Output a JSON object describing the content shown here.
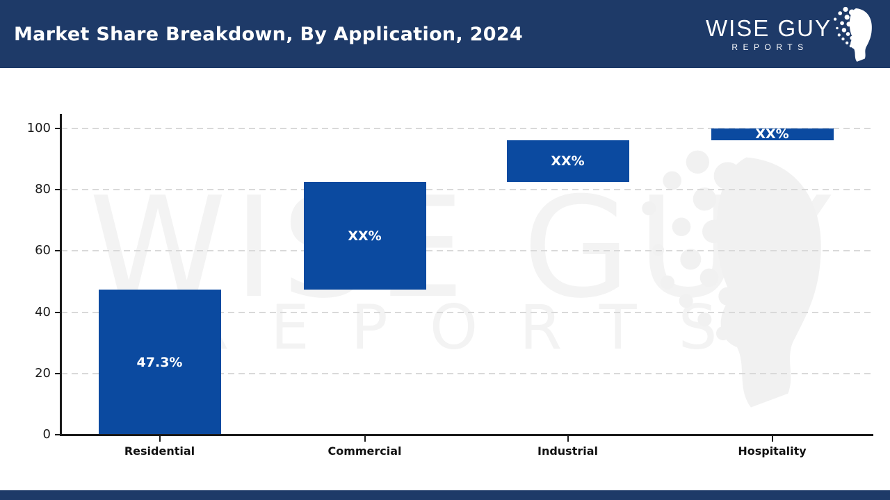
{
  "header": {
    "title": "Market Share Breakdown, By Application, 2024",
    "logo": {
      "line1": "WISE GUY",
      "line2": "REPORTS"
    }
  },
  "watermark": {
    "line1": "WISE GUY",
    "line2": "REPORTS"
  },
  "chart_data": {
    "type": "bar",
    "variant": "waterfall",
    "title": "Market Share Breakdown, By Application, 2024",
    "xlabel": "",
    "ylabel": "",
    "categories": [
      "Residential",
      "Commercial",
      "Industrial",
      "Hospitality"
    ],
    "segments": [
      {
        "category": "Residential",
        "start": 0,
        "end": 47.3,
        "label": "47.3%"
      },
      {
        "category": "Commercial",
        "start": 47.3,
        "end": 82.5,
        "label": "XX%"
      },
      {
        "category": "Industrial",
        "start": 82.5,
        "end": 96.2,
        "label": "XX%"
      },
      {
        "category": "Hospitality",
        "start": 96.2,
        "end": 100,
        "label": "XX%"
      }
    ],
    "yticks": [
      0,
      20,
      40,
      60,
      80,
      100
    ],
    "ylim": [
      0,
      100
    ],
    "grid": "horizontal-dashed",
    "legend": "none",
    "bar_color": "#0b4aa0",
    "label_color": "#ffffff"
  },
  "colors": {
    "header_bg": "#1e3a68",
    "footer_bg": "#1e3a68",
    "bar": "#0b4aa0",
    "grid": "#d9d9d9",
    "axis": "#1a1a1a",
    "watermark": "#f3f3f3"
  }
}
